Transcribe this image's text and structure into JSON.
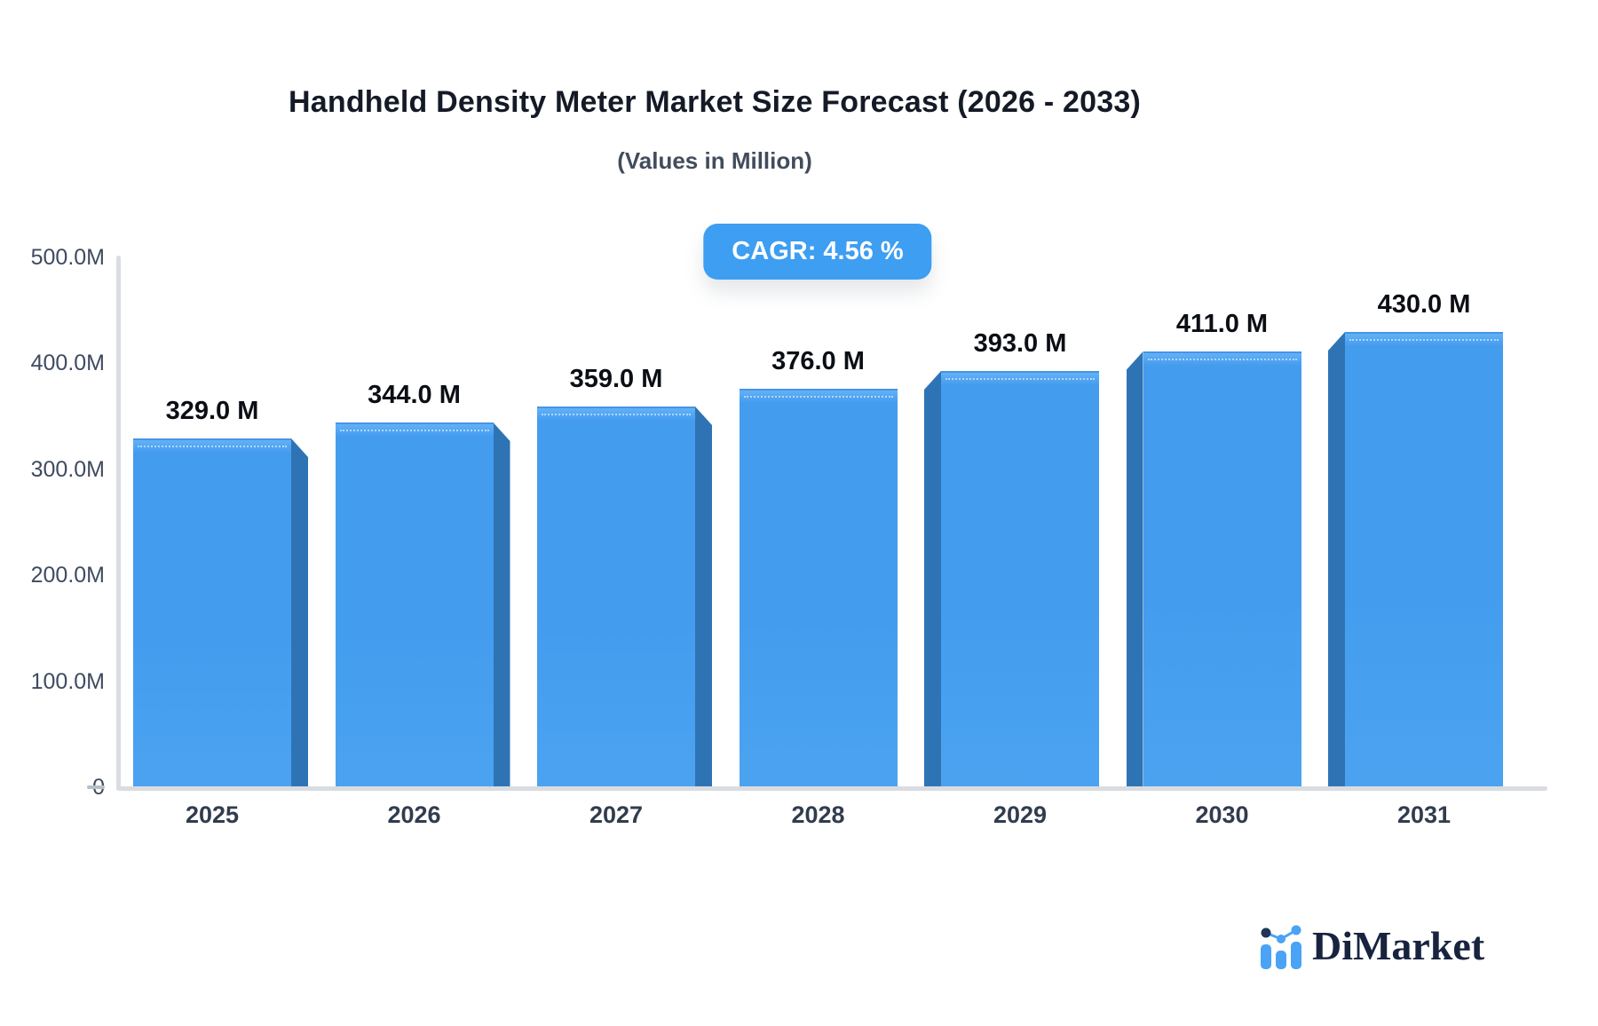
{
  "title": "Handheld Density Meter Market Size Forecast (2026 - 2033)",
  "subtitle": "(Values in Million)",
  "badge_label": "CAGR: 4.56 %",
  "chart_data": {
    "type": "bar",
    "categories": [
      "2025",
      "2026",
      "2027",
      "2028",
      "2029",
      "2030",
      "2031"
    ],
    "values": [
      329,
      344,
      359,
      376,
      393,
      411,
      430
    ],
    "value_labels": [
      "329.0 M",
      "344.0 M",
      "359.0 M",
      "376.0 M",
      "393.0 M",
      "411.0 M",
      "430.0 M"
    ],
    "title": "Handheld Density Meter Market Size Forecast (2026 - 2033)",
    "subtitle": "(Values in Million)",
    "unit": "Million",
    "xlabel": "",
    "ylabel": "",
    "ylim": [
      0,
      500
    ],
    "y_ticks": [
      {
        "label": "500.0M",
        "value": 500
      },
      {
        "label": "400.0M",
        "value": 400
      },
      {
        "label": "300.0M",
        "value": 300
      },
      {
        "label": "200.0M",
        "value": 200
      },
      {
        "label": "100.0M",
        "value": 100
      },
      {
        "label": "0",
        "value": 0
      }
    ],
    "grid": false,
    "legend": false,
    "style": "pseudo-3d bars angled toward center bar"
  },
  "colors": {
    "accent": "#3d9ef2",
    "bar_top": "#63b1f5",
    "bar_main": "#449cef",
    "bar_bottom": "#4ba3f0",
    "bar_side": "#2e74b5",
    "axis": "#d9dce1",
    "title_text": "#141a26",
    "value_text": "#0b0e14",
    "tick_text": "#3f4b60",
    "badge_text": "#ffffff",
    "logo_navy": "#18233f",
    "logo_blue": "#4aa3f5"
  },
  "branding": {
    "logo_text": "DiMarket",
    "logo_icon": "mini bar chart with dotted trend line"
  }
}
